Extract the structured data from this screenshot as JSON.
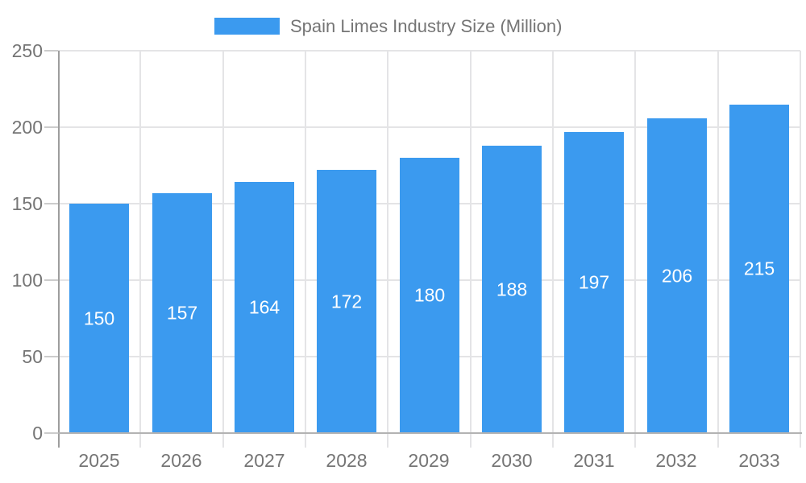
{
  "chart_data": {
    "type": "bar",
    "title": "Spain Limes Industry Size (Million)",
    "legend": {
      "position": "top",
      "label": "Spain Limes Industry Size (Million)"
    },
    "categories": [
      "2025",
      "2026",
      "2027",
      "2028",
      "2029",
      "2030",
      "2031",
      "2032",
      "2033"
    ],
    "values": [
      150,
      157,
      164,
      172,
      180,
      188,
      197,
      206,
      215
    ],
    "xlabel": "",
    "ylabel": "",
    "ylim": [
      0,
      250
    ],
    "y_ticks": [
      0,
      50,
      100,
      150,
      200,
      250
    ],
    "grid": true,
    "bar_labels_shown": true,
    "colors": {
      "bar": "#3B9AEF",
      "bar_label_text": "#FFFFFF",
      "axis_label_text": "#757575",
      "legend_text": "#757575",
      "gridline": "#E4E4E6",
      "tick_mark": "#CCCCCC",
      "y_axis_line": "#9E9E9E",
      "x_axis_line": "#B3B3B3",
      "background": "#FFFFFF"
    }
  }
}
